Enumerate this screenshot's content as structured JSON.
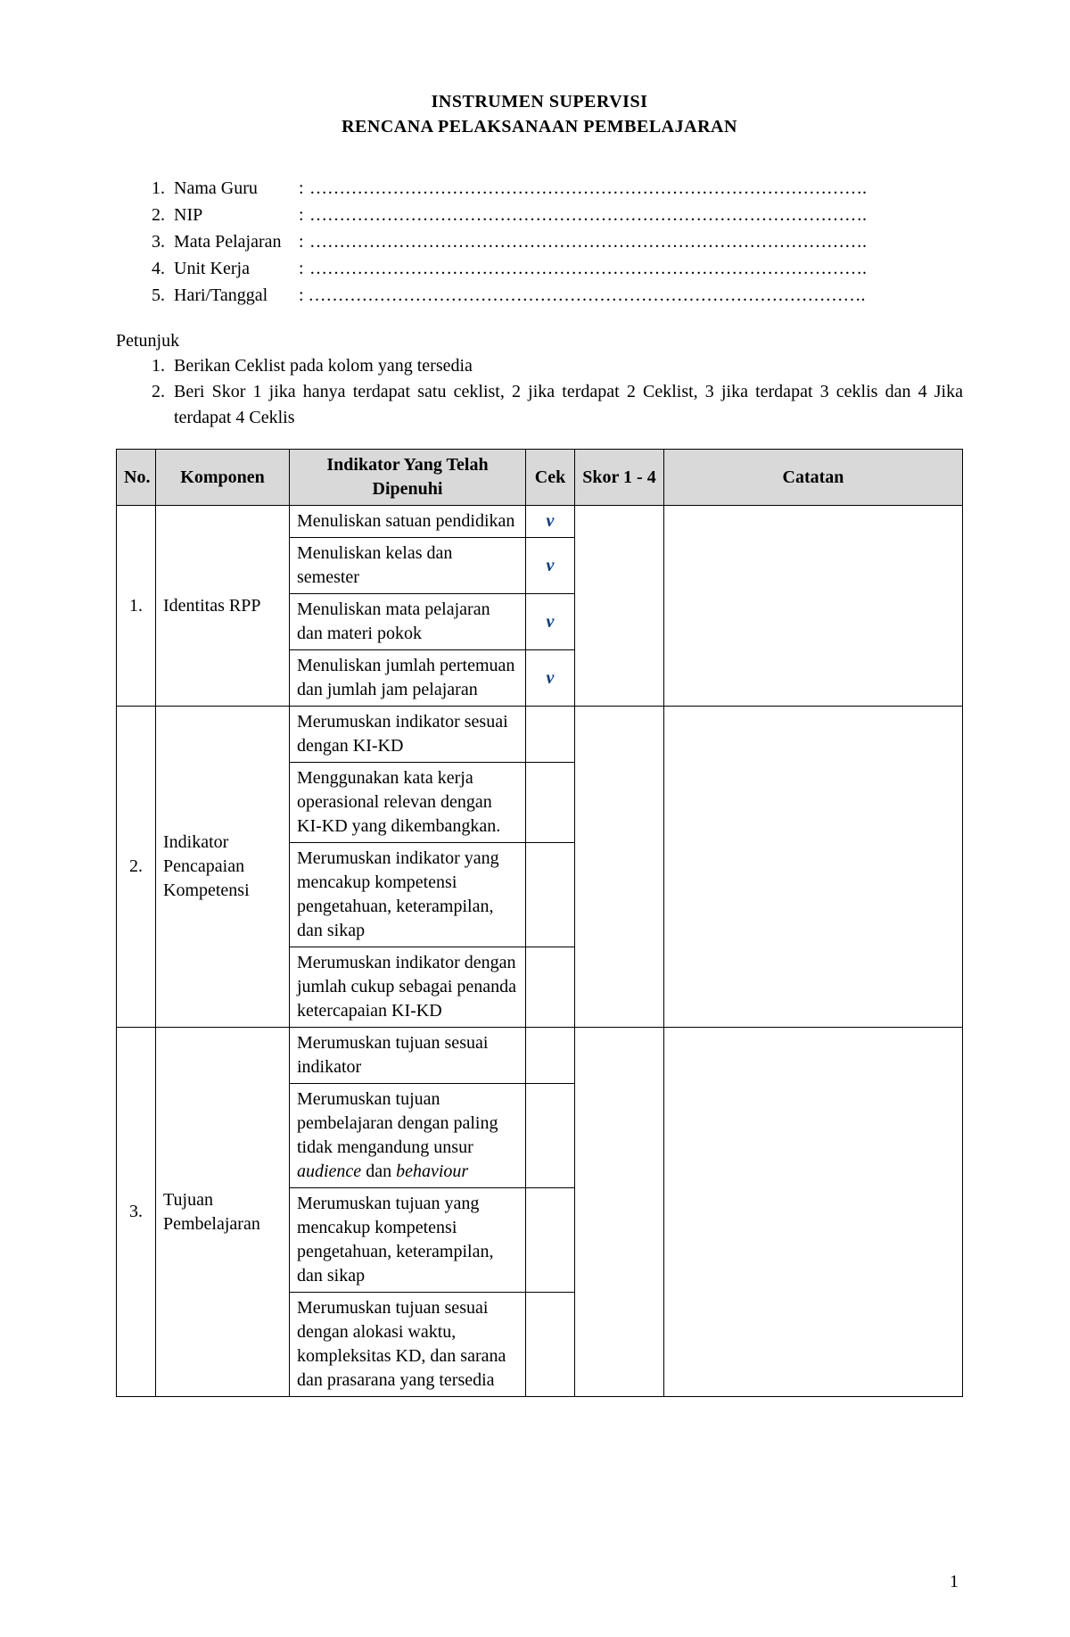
{
  "title": {
    "line1": "INSTRUMEN SUPERVISI",
    "line2": "RENCANA PELAKSANAAN PEMBELAJARAN"
  },
  "info": [
    {
      "num": "1.",
      "label": "Nama Guru",
      "dots": "…………………………………………………………………………………."
    },
    {
      "num": "2.",
      "label": "NIP",
      "dots": "…………………………………………………………………………………."
    },
    {
      "num": "3.",
      "label": "Mata Pelajaran",
      "dots": "…………………………………………………………………………………."
    },
    {
      "num": "4.",
      "label": "Unit Kerja",
      "dots": "…………………………………………………………………………………."
    },
    {
      "num": "5.",
      "label": "Hari/Tanggal",
      "dots": ": …………………………………………………………………………………."
    }
  ],
  "petunjuk": {
    "label": "Petunjuk",
    "items": [
      {
        "num": "1.",
        "text": "Berikan Ceklist pada kolom yang tersedia"
      },
      {
        "num": "2.",
        "text": "Beri Skor 1 jika hanya terdapat satu ceklist, 2 jika terdapat 2 Ceklist, 3 jika terdapat 3 ceklis dan 4 Jika terdapat 4 Ceklis"
      }
    ]
  },
  "table": {
    "headers": {
      "no": "No.",
      "komponen": "Komponen",
      "indikator": "Indikator Yang Telah Dipenuhi",
      "cek": "Cek",
      "skor": "Skor 1 - 4",
      "catatan": "Catatan"
    },
    "groups": [
      {
        "no": "1.",
        "komponen": "Identitas RPP",
        "rows": [
          {
            "indikator": "Menuliskan satuan pendidikan",
            "cek": "v"
          },
          {
            "indikator": "Menuliskan kelas dan semester",
            "cek": "v"
          },
          {
            "indikator": "Menuliskan mata pelajaran dan materi pokok",
            "cek": "v"
          },
          {
            "indikator": "Menuliskan jumlah pertemuan dan jumlah jam pelajaran",
            "cek": "v"
          }
        ]
      },
      {
        "no": "2.",
        "komponen": "Indikator Pencapaian Kompetensi",
        "rows": [
          {
            "indikator": "Merumuskan indikator sesuai dengan KI-KD",
            "cek": ""
          },
          {
            "indikator": "Menggunakan kata kerja operasional relevan dengan KI-KD yang dikembangkan.",
            "cek": ""
          },
          {
            "indikator": "Merumuskan indikator yang mencakup kompetensi pengetahuan, keterampilan, dan sikap",
            "cek": ""
          },
          {
            "indikator": "Merumuskan indikator dengan jumlah cukup sebagai penanda ketercapaian KI-KD",
            "cek": ""
          }
        ]
      },
      {
        "no": "3.",
        "komponen": "Tujuan Pembelajaran",
        "rows": [
          {
            "indikator": "Merumuskan tujuan sesuai indikator",
            "cek": ""
          },
          {
            "indikator_html": " Merumuskan tujuan pembelajaran dengan paling tidak mengandung unsur <span class=\"italic\">audience</span> dan <span class=\"italic\">behaviour</span>",
            "cek": ""
          },
          {
            "indikator": "Merumuskan tujuan yang mencakup kompetensi pengetahuan, keterampilan, dan sikap",
            "cek": ""
          },
          {
            "indikator": "Merumuskan tujuan sesuai dengan alokasi waktu, kompleksitas KD, dan sarana dan prasarana yang tersedia",
            "cek": ""
          }
        ]
      }
    ]
  },
  "pageNumber": "1"
}
